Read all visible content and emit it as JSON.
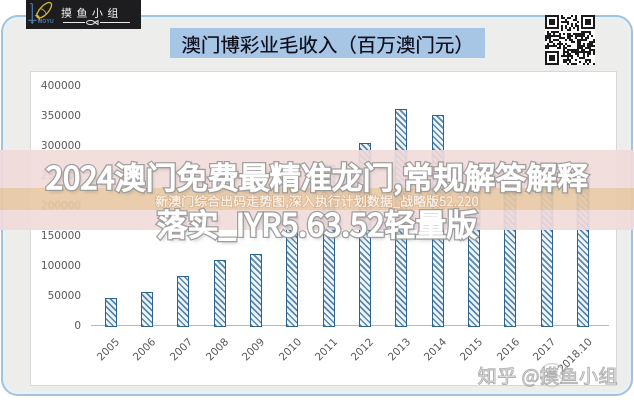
{
  "colors": {
    "page_bg": "#ffffff",
    "card_fill": "#ededeb",
    "card_border": "#a5c2dc",
    "panel_border": "#d9d9d9",
    "title_bg": "#a7c6e6",
    "title_fg": "#10101f",
    "logo_bg": "#1d1d1f",
    "band_pink": "rgba(241,217,217,0.87)",
    "band_tan": "rgba(231,198,160,0.87)",
    "overlay_text": "#ffffff",
    "overlay_outline": "#9a9a9a",
    "axis_label": "#595959",
    "axis_line": "#b9b9b9",
    "bar_fill": "#eef5fb",
    "bar_hatch": "#5787b0",
    "bar_border": "#2e638c",
    "watermark_fg": "#9d9d9d"
  },
  "logo": {
    "brand_cn": "摸 鱼 小 组",
    "brand_en": "MOYU",
    "fish_icon_color": "#d9b937",
    "rod_icon_color": "#4d7fa8"
  },
  "header": {
    "title": "澳门博彩业毛收入（百万澳门元）"
  },
  "overlay": {
    "line1": "2024澳门免费最精准龙门,常规解答解释",
    "line2": "落实_IYR5.63.52轻量版",
    "subline": "新澳门综合出码走势图,深入执行计划数据_战略版52.220"
  },
  "watermark": {
    "text": "知乎 @摸鱼小组"
  },
  "chart_data": {
    "type": "bar",
    "title": "澳门博彩业毛收入（百万澳门元）",
    "categories": [
      "2005",
      "2006",
      "2007",
      "2008",
      "2009",
      "2010",
      "2011",
      "2012",
      "2013",
      "2014",
      "2015",
      "2016",
      "2017",
      "2018.10"
    ],
    "values": [
      47134,
      57521,
      83847,
      109826,
      120383,
      188343,
      269058,
      305235,
      361866,
      352714,
      230840,
      223210,
      265743,
      249540
    ],
    "xlabel": "",
    "ylabel": "",
    "ylim": [
      0,
      400000
    ],
    "y_ticks": [
      0,
      50000,
      100000,
      150000,
      200000,
      250000,
      300000,
      350000,
      400000
    ],
    "grid": false,
    "legend": null,
    "bar_pattern": "diagonal-hatch"
  }
}
